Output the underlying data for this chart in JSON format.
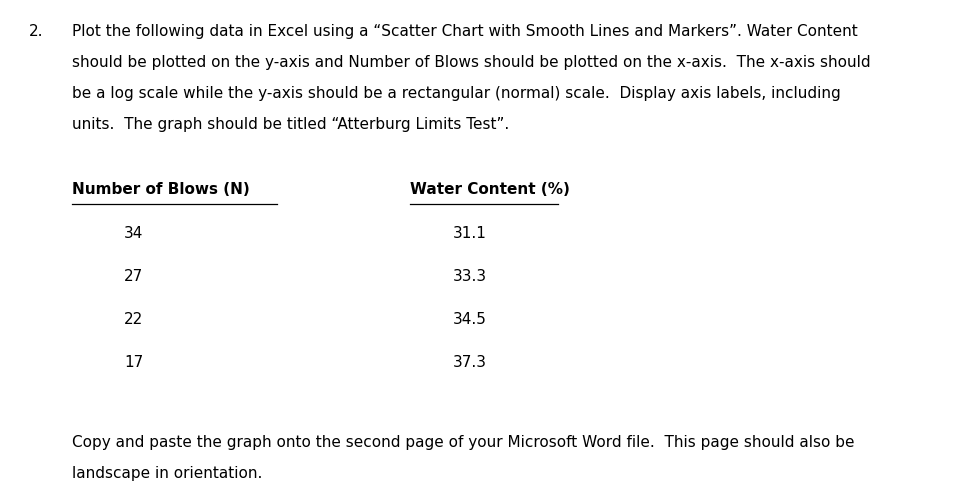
{
  "title_number": "2.",
  "para_lines": [
    "Plot the following data in Excel using a “Scatter Chart with Smooth Lines and Markers”. Water Content",
    "should be plotted on the y-axis and Number of Blows should be plotted on the x-axis.  The x-axis should",
    "be a log scale while the y-axis should be a rectangular (normal) scale.  Display axis labels, including",
    "units.  The graph should be titled “Atterburg Limits Test”."
  ],
  "col1_header": "Number of Blows (N)",
  "col2_header": "Water Content (%)",
  "blows": [
    34,
    27,
    22,
    17
  ],
  "water_content": [
    31.1,
    33.3,
    34.5,
    37.3
  ],
  "footer_lines": [
    "Copy and paste the graph onto the second page of your Microsoft Word file.  This page should also be",
    "landscape in orientation."
  ],
  "bg_color": "#ffffff",
  "text_color": "#000000",
  "font_size_body": 11,
  "font_size_header": 11
}
